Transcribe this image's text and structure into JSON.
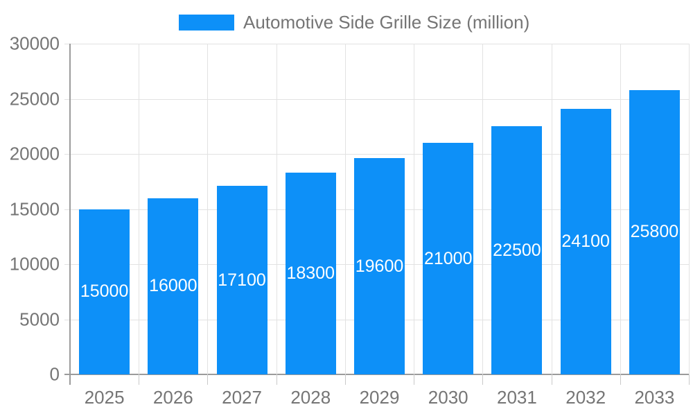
{
  "colors": {
    "bar": "#0D90F8",
    "grid": "#e2e2e2",
    "axis": "#9b9b9b",
    "tick": "#c9c9c9",
    "text": "#757575",
    "bar_label": "#ffffff",
    "background": "#ffffff"
  },
  "legend": {
    "label": "Automotive Side Grille Size (million)"
  },
  "chart_data": {
    "type": "bar",
    "title": "Automotive Side Grille Size (million)",
    "categories": [
      "2025",
      "2026",
      "2027",
      "2028",
      "2029",
      "2030",
      "2031",
      "2032",
      "2033"
    ],
    "values": [
      15000,
      16000,
      17100,
      18300,
      19600,
      21000,
      22500,
      24100,
      25800
    ],
    "series": [
      {
        "name": "Automotive Side Grille Size (million)",
        "values": [
          15000,
          16000,
          17100,
          18300,
          19600,
          21000,
          22500,
          24100,
          25800
        ]
      }
    ],
    "bar_labels": [
      "15000",
      "16000",
      "17100",
      "18300",
      "19600",
      "21000",
      "22500",
      "24100",
      "25800"
    ],
    "xlabel": "",
    "ylabel": "",
    "ylim": [
      0,
      30000
    ],
    "yticks": [
      0,
      5000,
      10000,
      15000,
      20000,
      25000,
      30000
    ],
    "ytick_labels": [
      "0",
      "5000",
      "10000",
      "15000",
      "20000",
      "25000",
      "30000"
    ],
    "grid": true,
    "legend_position": "top",
    "bar_label_position": "center"
  }
}
